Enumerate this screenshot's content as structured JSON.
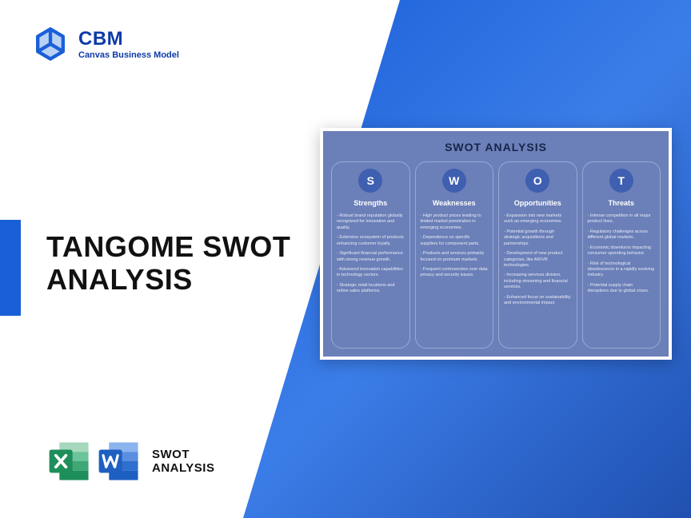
{
  "logo": {
    "brand": "CBM",
    "sub": "Canvas Business Model",
    "color": "#0d3aa8"
  },
  "accent_color": "#1a5fd8",
  "title_line1": "TANGOME SWOT",
  "title_line2": "ANALYSIS",
  "swot_card": {
    "title": "SWOT ANALYSIS",
    "bg": "#6b7fb8",
    "circle_bg": "#3f5fb0",
    "columns": [
      {
        "letter": "S",
        "label": "Strengths",
        "items": [
          "- Robust brand reputation globally recognized for innovation and quality.",
          "- Extensive ecosystem of products enhancing customer loyalty.",
          "- Significant financial performance with strong revenue growth.",
          "- Advanced innovation capabilities in technology sectors.",
          "- Strategic retail locations and online sales platforms."
        ]
      },
      {
        "letter": "W",
        "label": "Weaknesses",
        "items": [
          "- High product prices leading to limited market penetration in emerging economies.",
          "- Dependence on specific suppliers for component parts.",
          "- Products and services primarily focused on premium markets.",
          "- Frequent controversies over data privacy and security issues."
        ]
      },
      {
        "letter": "O",
        "label": "Opportunities",
        "items": [
          "- Expansion into new markets such as emerging economies.",
          "- Potential growth through strategic acquisitions and partnerships.",
          "- Development of new product categories, like AR/VR technologies.",
          "- Increasing services division, including streaming and financial services.",
          "- Enhanced focus on sustainability and environmental impact."
        ]
      },
      {
        "letter": "T",
        "label": "Threats",
        "items": [
          "- Intense competition in all major product lines.",
          "- Regulatory challenges across different global markets.",
          "- Economic downturns impacting consumer spending behavior.",
          "- Risk of technological obsolescence in a rapidly evolving industry.",
          "- Potential supply chain disruptions due to global crises."
        ]
      }
    ]
  },
  "footer": {
    "line1": "SWOT",
    "line2": "ANALYSIS",
    "excel_color": "#1e8e5a",
    "word_color": "#1e5fc2"
  }
}
